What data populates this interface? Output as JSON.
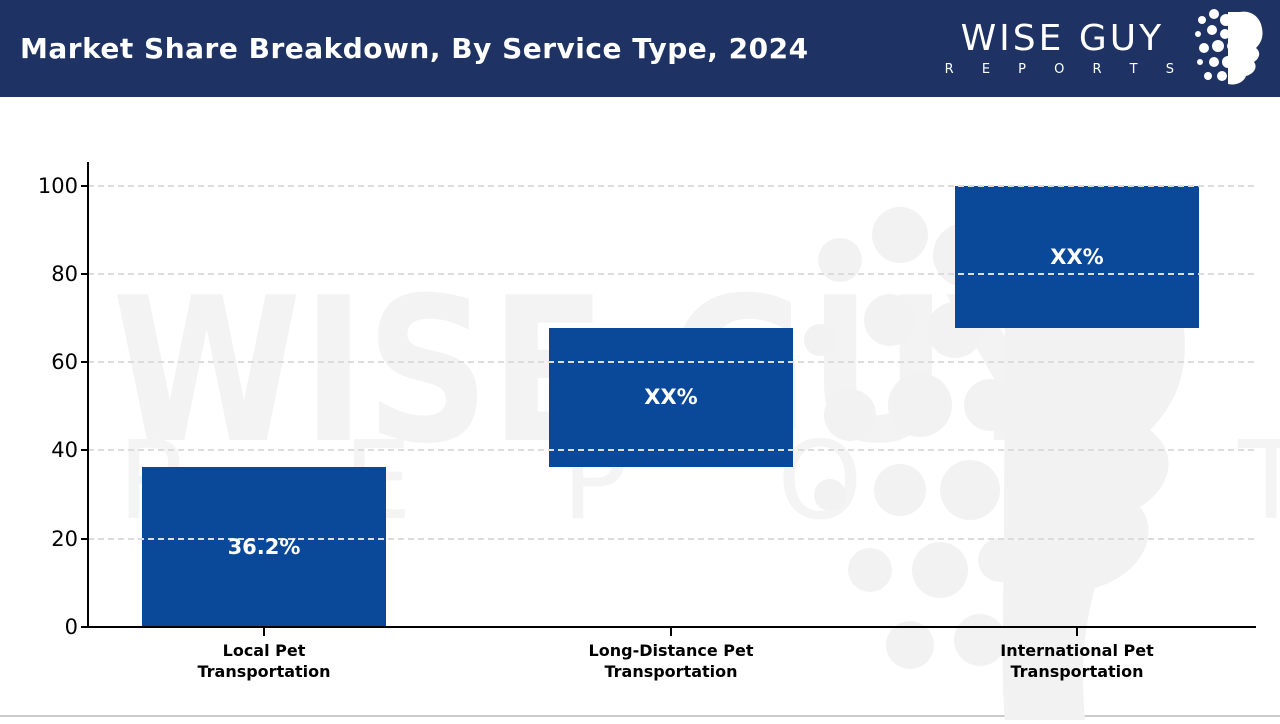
{
  "header": {
    "title": "Market Share Breakdown, By Service Type, 2024",
    "logo": {
      "line1": "WISE GUY",
      "line2": "R E P O R T S"
    }
  },
  "watermark": {
    "line1": "WISE GUY",
    "line2": "R E P O R T S"
  },
  "chart_data": {
    "type": "bar",
    "subtype": "waterfall",
    "title": "Market Share Breakdown, By Service Type, 2024",
    "categories": [
      "Local Pet Transportation",
      "Long-Distance Pet Transportation",
      "International Pet Transportation"
    ],
    "segments": [
      {
        "category": "Local Pet Transportation",
        "start": 0,
        "end": 36.2,
        "label": "36.2%"
      },
      {
        "category": "Long-Distance Pet Transportation",
        "start": 36.2,
        "end": 67.8,
        "label": "XX%"
      },
      {
        "category": "International Pet Transportation",
        "start": 67.8,
        "end": 100,
        "label": "XX%"
      }
    ],
    "yticks": [
      0,
      20,
      40,
      60,
      80,
      100
    ],
    "ylim": [
      0,
      105
    ],
    "xlabel": "",
    "ylabel": "",
    "grid": true,
    "legend": false,
    "bar_color": "#0a4899",
    "value_label_color": "#ffffff"
  },
  "colors": {
    "header_bg": "#1e3264",
    "bar": "#0a4899",
    "grid": "#dcdcdc",
    "axis": "#000000",
    "watermark": "#f3f3f3",
    "text": "#000000",
    "value_label": "#ffffff"
  }
}
